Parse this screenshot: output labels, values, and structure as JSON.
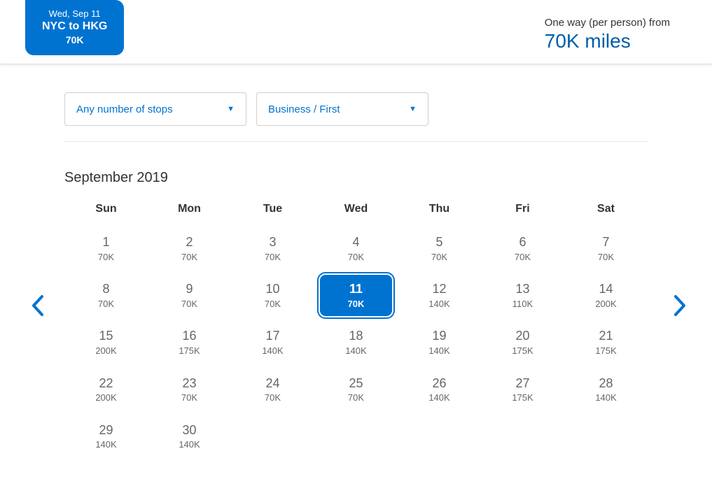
{
  "colors": {
    "brand_blue": "#0073d1",
    "brand_blue_dark": "#005daa",
    "border_gray": "#d0d0d0",
    "text_gray": "#666",
    "text_dark": "#333",
    "white": "#ffffff"
  },
  "trip_tab": {
    "date_label": "Wed, Sep 11",
    "route": "NYC to HKG",
    "miles": "70K"
  },
  "price_summary": {
    "label": "One way (per person) from",
    "value": "70K miles"
  },
  "filters": {
    "stops": {
      "selected": "Any number of stops"
    },
    "cabin": {
      "selected": "Business / First"
    }
  },
  "calendar": {
    "month_label": "September 2019",
    "day_headers": [
      "Sun",
      "Mon",
      "Tue",
      "Wed",
      "Thu",
      "Fri",
      "Sat"
    ],
    "start_offset": 0,
    "selected_day": 11,
    "days": [
      {
        "n": 1,
        "p": "70K"
      },
      {
        "n": 2,
        "p": "70K"
      },
      {
        "n": 3,
        "p": "70K"
      },
      {
        "n": 4,
        "p": "70K"
      },
      {
        "n": 5,
        "p": "70K"
      },
      {
        "n": 6,
        "p": "70K"
      },
      {
        "n": 7,
        "p": "70K"
      },
      {
        "n": 8,
        "p": "70K"
      },
      {
        "n": 9,
        "p": "70K"
      },
      {
        "n": 10,
        "p": "70K"
      },
      {
        "n": 11,
        "p": "70K"
      },
      {
        "n": 12,
        "p": "140K"
      },
      {
        "n": 13,
        "p": "110K"
      },
      {
        "n": 14,
        "p": "200K"
      },
      {
        "n": 15,
        "p": "200K"
      },
      {
        "n": 16,
        "p": "175K"
      },
      {
        "n": 17,
        "p": "140K"
      },
      {
        "n": 18,
        "p": "140K"
      },
      {
        "n": 19,
        "p": "140K"
      },
      {
        "n": 20,
        "p": "175K"
      },
      {
        "n": 21,
        "p": "175K"
      },
      {
        "n": 22,
        "p": "200K"
      },
      {
        "n": 23,
        "p": "70K"
      },
      {
        "n": 24,
        "p": "70K"
      },
      {
        "n": 25,
        "p": "70K"
      },
      {
        "n": 26,
        "p": "140K"
      },
      {
        "n": 27,
        "p": "175K"
      },
      {
        "n": 28,
        "p": "140K"
      },
      {
        "n": 29,
        "p": "140K"
      },
      {
        "n": 30,
        "p": "140K"
      }
    ]
  }
}
